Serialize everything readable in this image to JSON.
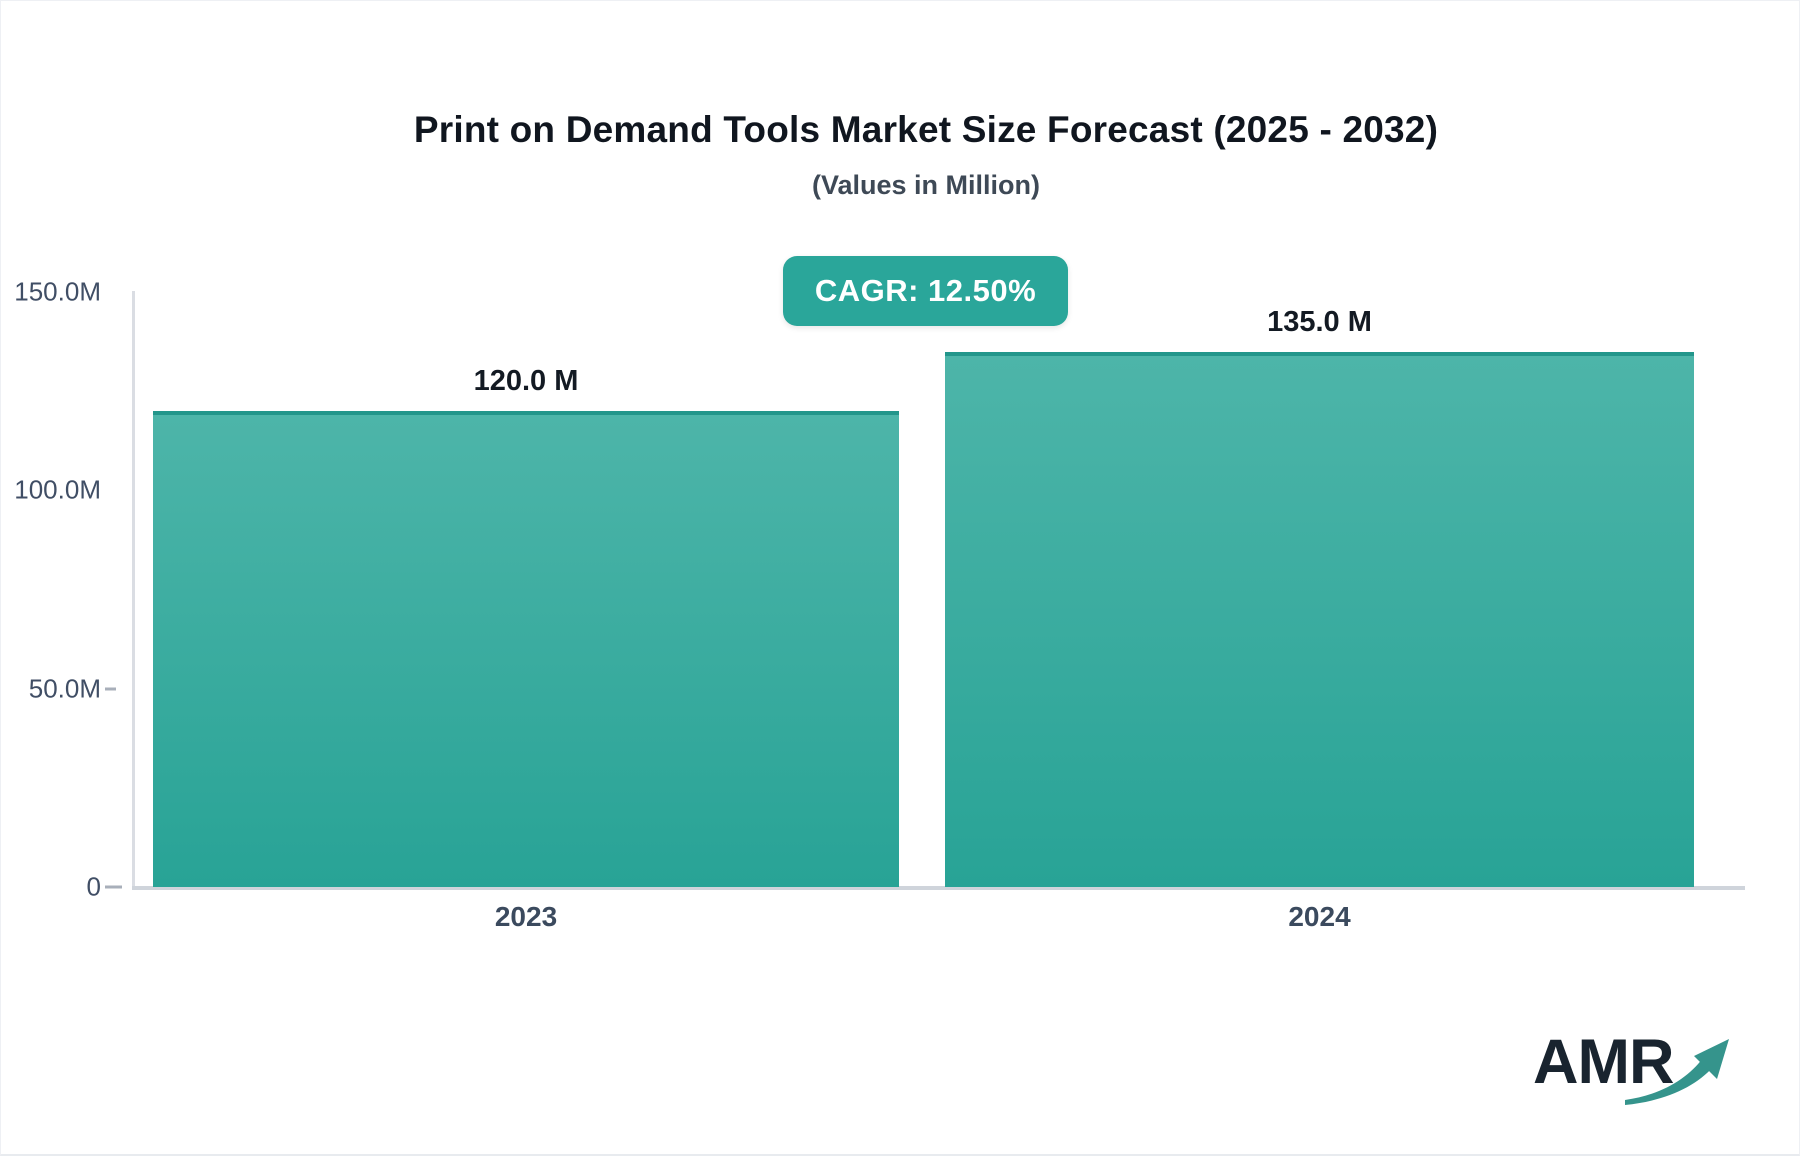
{
  "header": {
    "title": "Print on Demand Tools Market Size Forecast (2025 - 2032)",
    "subtitle": "(Values in Million)",
    "cagr_label": "CAGR: 12.50%"
  },
  "chart_data": {
    "type": "bar",
    "title": "Print on Demand Tools Market Size Forecast (2025 - 2032)",
    "subtitle": "(Values in Million)",
    "unit": "Million",
    "cagr_percent": "12.50%",
    "categories": [
      "2023",
      "2024"
    ],
    "values": [
      120.0,
      135.0
    ],
    "value_labels": [
      "120.0 M",
      "135.0 M"
    ],
    "ylim": [
      0,
      150
    ],
    "yticks": [
      {
        "value": 150,
        "label": "150.0M",
        "dash": false
      },
      {
        "value": 100,
        "label": "100.0M",
        "dash": false
      },
      {
        "value": 50,
        "label": "50.0M",
        "dash": true
      },
      {
        "value": 0,
        "label": "0",
        "dash": true
      }
    ],
    "grid": false,
    "legend_position": "none",
    "colors": {
      "bar_gradient_top": "#4db5a9",
      "bar_gradient_bottom": "#28a396",
      "bar_top_border": "#23968b",
      "badge_background": "#2aa69a",
      "badge_text": "#ffffff"
    }
  },
  "logo": {
    "text": "AMR",
    "icon": "trend-up-arrow-icon",
    "text_color": "#19242f",
    "arrow_color": "#35948c"
  }
}
